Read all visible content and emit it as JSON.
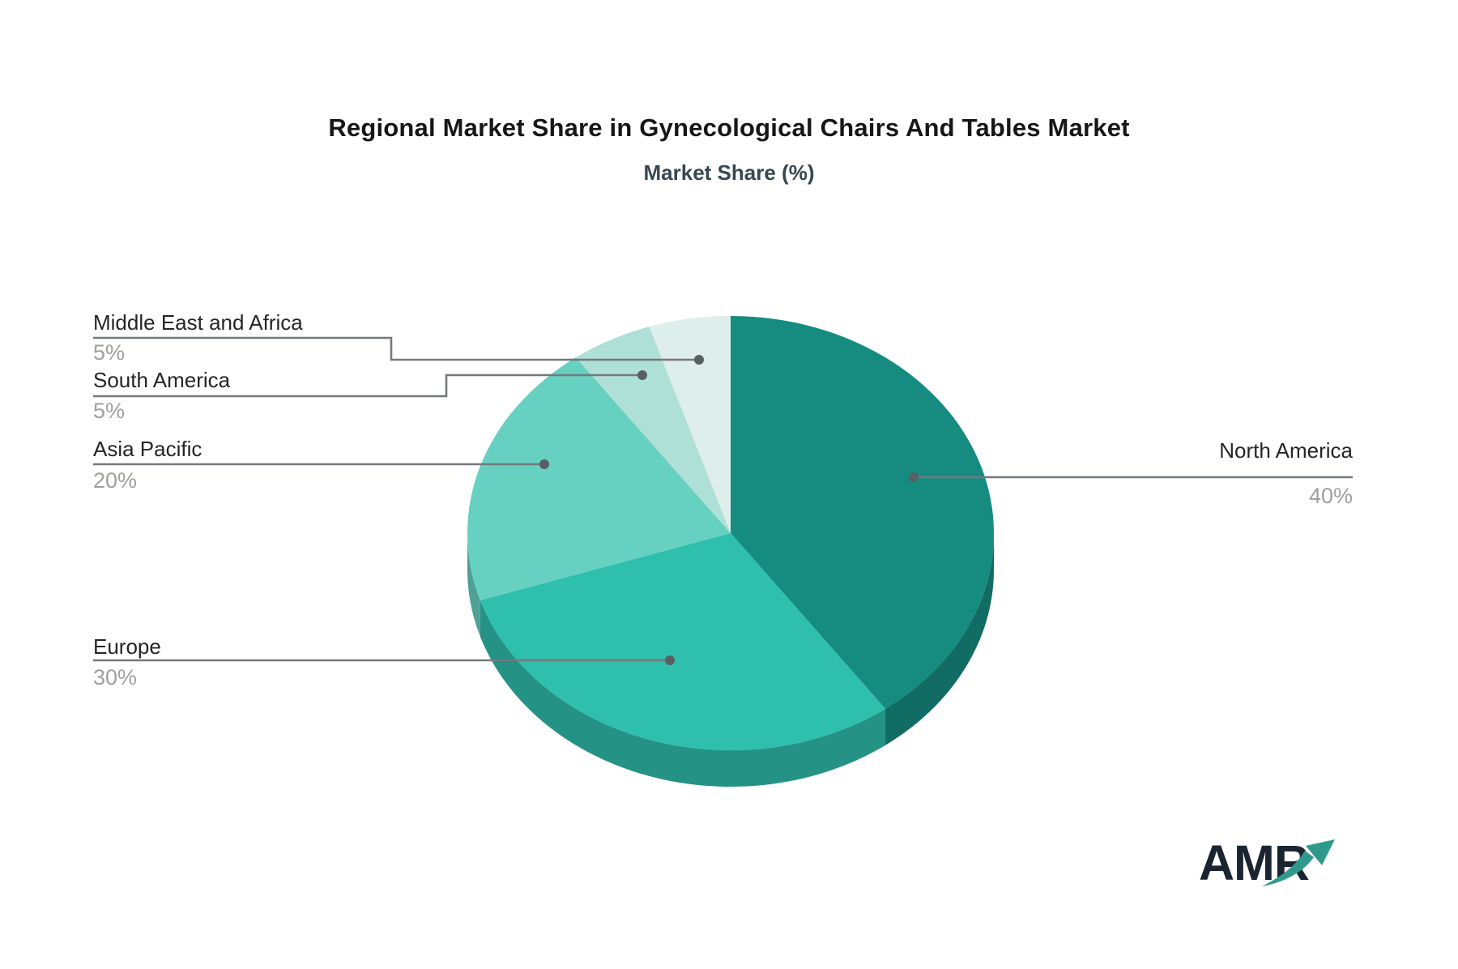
{
  "title": "Regional Market Share in Gynecological Chairs And Tables Market",
  "subtitle": "Market Share (%)",
  "logo": {
    "text": "AMR"
  },
  "colors": {
    "background": "#ffffff",
    "title_text": "#161616",
    "subtitle_text": "#37474f",
    "label_text": "#252525",
    "pct_text": "#9f9f9f",
    "leader_line": "#75797c",
    "leader_dot": "#585f63",
    "logo_text": "#1b2531",
    "logo_arrow": "#2f9a8b"
  },
  "chart_data": {
    "type": "pie",
    "title": "Regional Market Share in Gynecological Chairs And Tables Market",
    "subtitle": "Market Share (%)",
    "unit": "%",
    "effect": "3d",
    "start_angle_deg": 0,
    "direction": "clockwise",
    "legend_position": "none",
    "labels_style": "external-leader-lines",
    "slices": [
      {
        "label": "North America",
        "value": 40,
        "pct_label": "40%",
        "color": "#168C81"
      },
      {
        "label": "Europe",
        "value": 30,
        "pct_label": "30%",
        "color": "#2FBFAD"
      },
      {
        "label": "Asia Pacific",
        "value": 20,
        "pct_label": "20%",
        "color": "#67D1C1"
      },
      {
        "label": "South America",
        "value": 5,
        "pct_label": "5%",
        "color": "#AFE0D7"
      },
      {
        "label": "Middle East and Africa",
        "value": 5,
        "pct_label": "5%",
        "color": "#DEEEEA"
      }
    ]
  }
}
